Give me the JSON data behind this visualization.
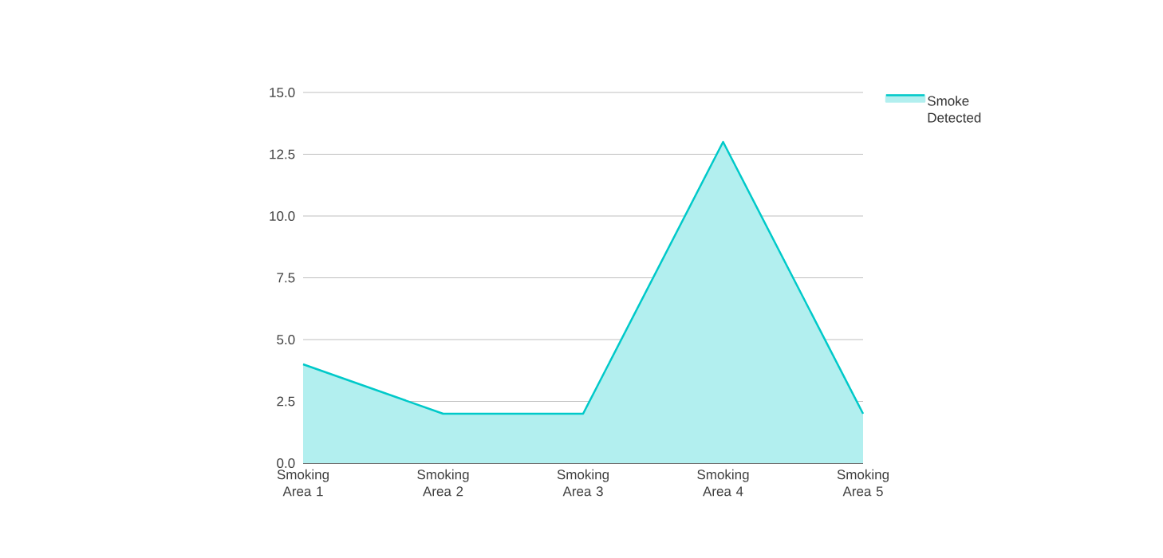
{
  "chart_data": {
    "type": "area",
    "categories": [
      "Smoking Area 1",
      "Smoking Area 2",
      "Smoking Area 3",
      "Smoking Area 4",
      "Smoking Area 5"
    ],
    "series": [
      {
        "name": "Smoke Detected",
        "color": "#00c9c9",
        "values": [
          4,
          2,
          2,
          13,
          2
        ]
      }
    ],
    "ylim": [
      0,
      15
    ],
    "yticks": [
      {
        "value": 0,
        "label": "0.0"
      },
      {
        "value": 2.5,
        "label": "2.5"
      },
      {
        "value": 5,
        "label": "5.0"
      },
      {
        "value": 7.5,
        "label": "7.5"
      },
      {
        "value": 10,
        "label": "10.0"
      },
      {
        "value": 12.5,
        "label": "12.5"
      },
      {
        "value": 15,
        "label": "15.0"
      }
    ],
    "grid": "y",
    "legend": "top right",
    "marker": "none"
  }
}
